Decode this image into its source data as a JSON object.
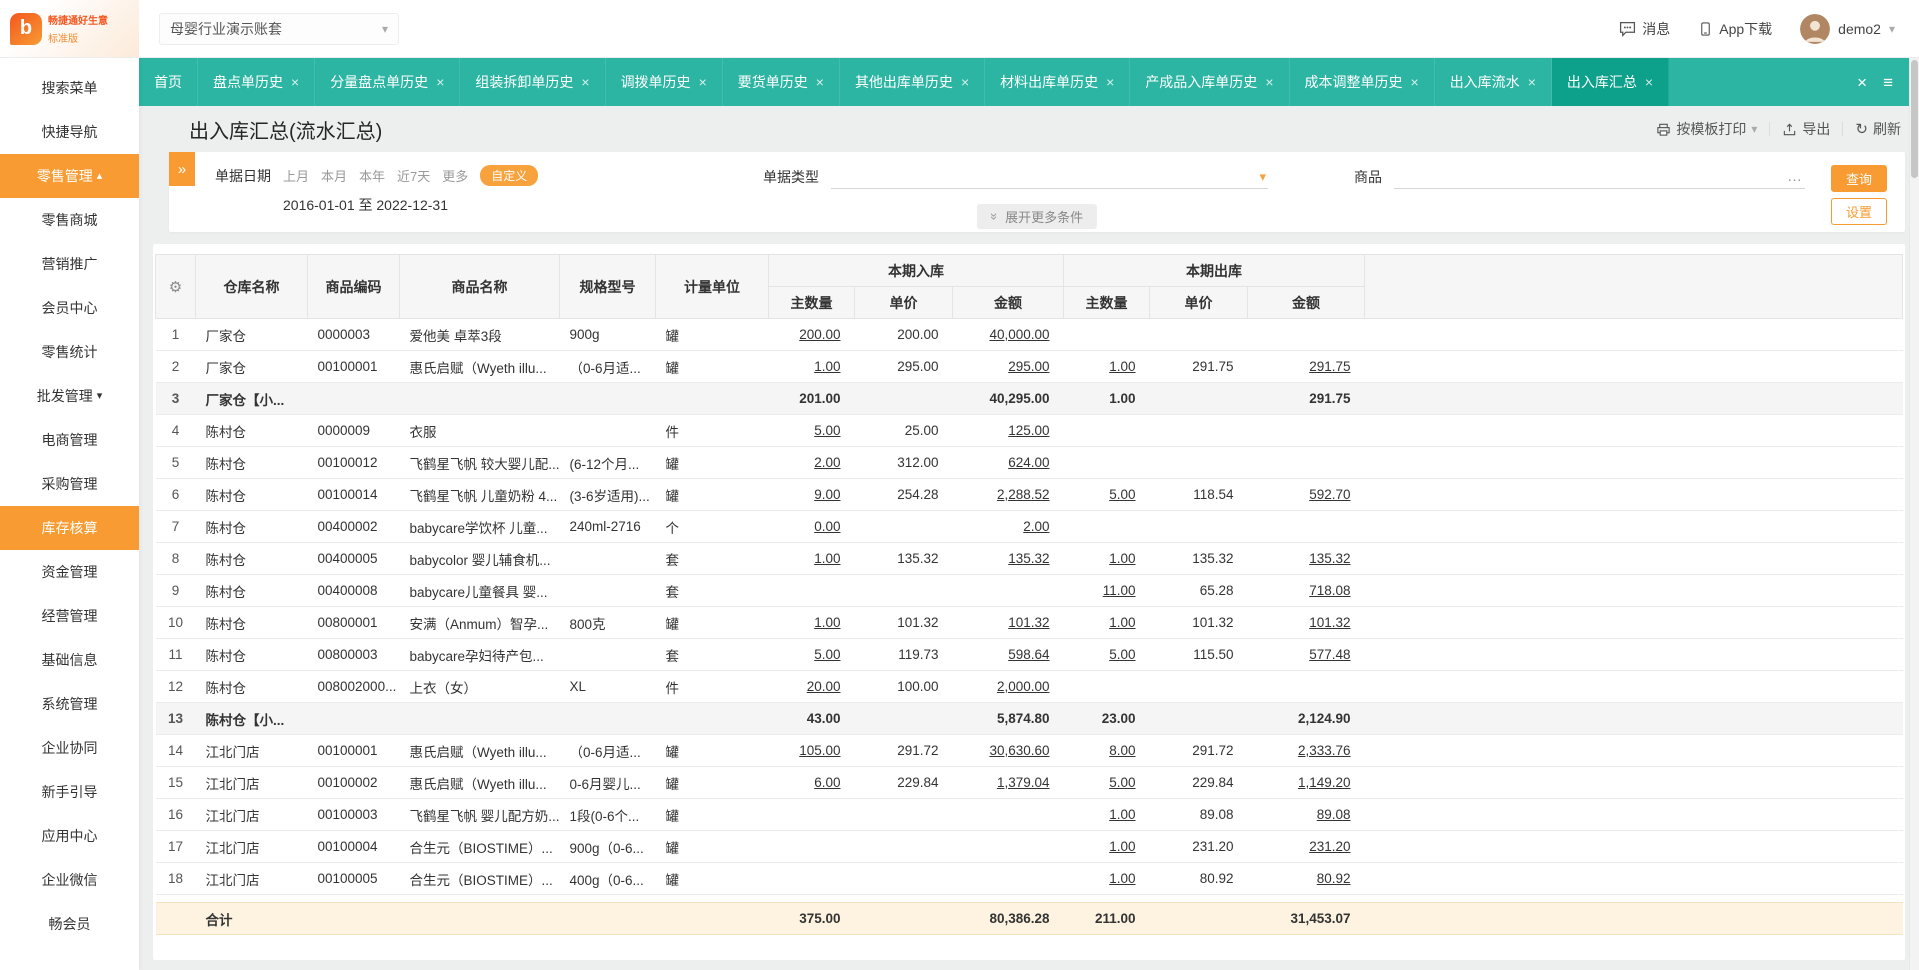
{
  "colors": {
    "teal": "#2db5a3",
    "teal_active_tab": "#0da08b",
    "accent_orange": "#f79b32",
    "logo_orange": "#f4571f",
    "total_row_bg": "#fdf3e0",
    "subtotal_row_bg": "#f5f5f5"
  },
  "icons": {
    "close": "×",
    "gear": "⚙",
    "refresh": "↻",
    "caret_down": "▾",
    "caret_up": "▴",
    "chevron_double": "»",
    "ellipsis": "…",
    "menu": "≡"
  },
  "topbar": {
    "logo_mark": "b",
    "logo_title": "畅捷通好生意",
    "logo_edition": "标准版",
    "account_select": "母婴行业演示账套",
    "messages_label": "消息",
    "app_download_label": "App下载",
    "username": "demo2"
  },
  "sidebar": {
    "items": [
      {
        "key": "search-menu",
        "label": "搜索菜单"
      },
      {
        "key": "quick-nav",
        "label": "快捷导航"
      },
      {
        "key": "retail-mgmt",
        "label": "零售管理",
        "active": true,
        "arrow": "up"
      },
      {
        "key": "retail-mall",
        "label": "零售商城"
      },
      {
        "key": "marketing",
        "label": "营销推广"
      },
      {
        "key": "member-center",
        "label": "会员中心"
      },
      {
        "key": "retail-stats",
        "label": "零售统计"
      },
      {
        "key": "wholesale-mgmt",
        "label": "批发管理",
        "arrow": "down"
      },
      {
        "key": "ecommerce-mgmt",
        "label": "电商管理"
      },
      {
        "key": "purchase-mgmt",
        "label": "采购管理"
      },
      {
        "key": "inventory-accounting",
        "label": "库存核算",
        "active": true
      },
      {
        "key": "fund-mgmt",
        "label": "资金管理"
      },
      {
        "key": "operation-mgmt",
        "label": "经营管理"
      },
      {
        "key": "basic-info",
        "label": "基础信息"
      },
      {
        "key": "system-mgmt",
        "label": "系统管理"
      },
      {
        "key": "enterprise-collab",
        "label": "企业协同"
      },
      {
        "key": "beginner-guide",
        "label": "新手引导"
      },
      {
        "key": "app-center",
        "label": "应用中心"
      },
      {
        "key": "wecom",
        "label": "企业微信"
      },
      {
        "key": "chang-member",
        "label": "畅会员"
      }
    ]
  },
  "tabs": {
    "items": [
      {
        "key": "home",
        "label": "首页",
        "closable": false
      },
      {
        "key": "count-history",
        "label": "盘点单历史",
        "closable": true
      },
      {
        "key": "weighed-count-history",
        "label": "分量盘点单历史",
        "closable": true
      },
      {
        "key": "assembly-history",
        "label": "组装拆卸单历史",
        "closable": true
      },
      {
        "key": "transfer-history",
        "label": "调拨单历史",
        "closable": true
      },
      {
        "key": "requisition-history",
        "label": "要货单历史",
        "closable": true
      },
      {
        "key": "other-outbound-history",
        "label": "其他出库单历史",
        "closable": true
      },
      {
        "key": "material-outbound-history",
        "label": "材料出库单历史",
        "closable": true
      },
      {
        "key": "finished-inbound-history",
        "label": "产成品入库单历史",
        "closable": true
      },
      {
        "key": "cost-adjust-history",
        "label": "成本调整单历史",
        "closable": true
      },
      {
        "key": "inout-flow",
        "label": "出入库流水",
        "closable": true
      },
      {
        "key": "inout-summary",
        "label": "出入库汇总",
        "closable": true,
        "active": true
      }
    ]
  },
  "page": {
    "title": "出入库汇总(流水汇总)",
    "actions": {
      "print": "按模板打印",
      "export": "导出",
      "refresh": "刷新"
    }
  },
  "filters": {
    "date_label": "单据日期",
    "date_quick": [
      "上月",
      "本月",
      "本年",
      "近7天",
      "更多"
    ],
    "date_custom_badge": "自定义",
    "date_range": "2016-01-01 至 2022-12-31",
    "doc_type_label": "单据类型",
    "product_label": "商品",
    "search_button": "查询",
    "settings_button": "设置",
    "expand_more": "展开更多条件"
  },
  "table": {
    "group_in": "本期入库",
    "group_out": "本期出库",
    "columns": [
      "仓库名称",
      "商品编码",
      "商品名称",
      "规格型号",
      "计量单位"
    ],
    "sub_columns": [
      "主数量",
      "单价",
      "金额"
    ],
    "rows": [
      {
        "type": "data",
        "num": "1",
        "warehouse": "厂家仓",
        "code": "0000003",
        "name": "爱他美 卓萃3段",
        "spec": "900g",
        "unit": "罐",
        "in_qty": "200.00",
        "in_price": "200.00",
        "in_amount": "40,000.00",
        "out_qty": "",
        "out_price": "",
        "out_amount": ""
      },
      {
        "type": "data",
        "num": "2",
        "warehouse": "厂家仓",
        "code": "00100001",
        "name": "惠氏启赋（Wyeth illu...",
        "spec": "（0-6月适...",
        "unit": "罐",
        "in_qty": "1.00",
        "in_price": "295.00",
        "in_amount": "295.00",
        "out_qty": "1.00",
        "out_price": "291.75",
        "out_amount": "291.75"
      },
      {
        "type": "subtotal",
        "num": "3",
        "warehouse": "厂家仓【小...",
        "code": "",
        "name": "",
        "spec": "",
        "unit": "",
        "in_qty": "201.00",
        "in_price": "",
        "in_amount": "40,295.00",
        "out_qty": "1.00",
        "out_price": "",
        "out_amount": "291.75"
      },
      {
        "type": "data",
        "num": "4",
        "warehouse": "陈村仓",
        "code": "0000009",
        "name": "衣服",
        "spec": "",
        "unit": "件",
        "in_qty": "5.00",
        "in_price": "25.00",
        "in_amount": "125.00",
        "out_qty": "",
        "out_price": "",
        "out_amount": ""
      },
      {
        "type": "data",
        "num": "5",
        "warehouse": "陈村仓",
        "code": "00100012",
        "name": "飞鹤星飞帆 较大婴儿配...",
        "spec": "(6-12个月...",
        "unit": "罐",
        "in_qty": "2.00",
        "in_price": "312.00",
        "in_amount": "624.00",
        "out_qty": "",
        "out_price": "",
        "out_amount": ""
      },
      {
        "type": "data",
        "num": "6",
        "warehouse": "陈村仓",
        "code": "00100014",
        "name": "飞鹤星飞帆 儿童奶粉 4...",
        "spec": "(3-6岁适用)...",
        "unit": "罐",
        "in_qty": "9.00",
        "in_price": "254.28",
        "in_amount": "2,288.52",
        "out_qty": "5.00",
        "out_price": "118.54",
        "out_amount": "592.70"
      },
      {
        "type": "data",
        "num": "7",
        "warehouse": "陈村仓",
        "code": "00400002",
        "name": "babycare学饮杯 儿童...",
        "spec": "240ml-2716",
        "unit": "个",
        "in_qty": "0.00",
        "in_price": "",
        "in_amount": "2.00",
        "out_qty": "",
        "out_price": "",
        "out_amount": ""
      },
      {
        "type": "data",
        "num": "8",
        "warehouse": "陈村仓",
        "code": "00400005",
        "name": "babycolor 婴儿辅食机...",
        "spec": "",
        "unit": "套",
        "in_qty": "1.00",
        "in_price": "135.32",
        "in_amount": "135.32",
        "out_qty": "1.00",
        "out_price": "135.32",
        "out_amount": "135.32"
      },
      {
        "type": "data",
        "num": "9",
        "warehouse": "陈村仓",
        "code": "00400008",
        "name": "babycare儿童餐具 婴...",
        "spec": "",
        "unit": "套",
        "in_qty": "",
        "in_price": "",
        "in_amount": "",
        "out_qty": "11.00",
        "out_price": "65.28",
        "out_amount": "718.08"
      },
      {
        "type": "data",
        "num": "10",
        "warehouse": "陈村仓",
        "code": "00800001",
        "name": "安满（Anmum）智孕...",
        "spec": "800克",
        "unit": "罐",
        "in_qty": "1.00",
        "in_price": "101.32",
        "in_amount": "101.32",
        "out_qty": "1.00",
        "out_price": "101.32",
        "out_amount": "101.32"
      },
      {
        "type": "data",
        "num": "11",
        "warehouse": "陈村仓",
        "code": "00800003",
        "name": "babycare孕妇待产包...",
        "spec": "",
        "unit": "套",
        "in_qty": "5.00",
        "in_price": "119.73",
        "in_amount": "598.64",
        "out_qty": "5.00",
        "out_price": "115.50",
        "out_amount": "577.48"
      },
      {
        "type": "data",
        "num": "12",
        "warehouse": "陈村仓",
        "code": "008002000...",
        "name": "上衣（女）",
        "spec": "XL",
        "unit": "件",
        "in_qty": "20.00",
        "in_price": "100.00",
        "in_amount": "2,000.00",
        "out_qty": "",
        "out_price": "",
        "out_amount": ""
      },
      {
        "type": "subtotal",
        "num": "13",
        "warehouse": "陈村仓【小...",
        "code": "",
        "name": "",
        "spec": "",
        "unit": "",
        "in_qty": "43.00",
        "in_price": "",
        "in_amount": "5,874.80",
        "out_qty": "23.00",
        "out_price": "",
        "out_amount": "2,124.90"
      },
      {
        "type": "data",
        "num": "14",
        "warehouse": "江北门店",
        "code": "00100001",
        "name": "惠氏启赋（Wyeth illu...",
        "spec": "（0-6月适...",
        "unit": "罐",
        "in_qty": "105.00",
        "in_price": "291.72",
        "in_amount": "30,630.60",
        "out_qty": "8.00",
        "out_price": "291.72",
        "out_amount": "2,333.76"
      },
      {
        "type": "data",
        "num": "15",
        "warehouse": "江北门店",
        "code": "00100002",
        "name": "惠氏启赋（Wyeth illu...",
        "spec": "0-6月婴儿...",
        "unit": "罐",
        "in_qty": "6.00",
        "in_price": "229.84",
        "in_amount": "1,379.04",
        "out_qty": "5.00",
        "out_price": "229.84",
        "out_amount": "1,149.20"
      },
      {
        "type": "data",
        "num": "16",
        "warehouse": "江北门店",
        "code": "00100003",
        "name": "飞鹤星飞帆 婴儿配方奶...",
        "spec": "1段(0-6个...",
        "unit": "罐",
        "in_qty": "",
        "in_price": "",
        "in_amount": "",
        "out_qty": "1.00",
        "out_price": "89.08",
        "out_amount": "89.08"
      },
      {
        "type": "data",
        "num": "17",
        "warehouse": "江北门店",
        "code": "00100004",
        "name": "合生元（BIOSTIME）...",
        "spec": "900g（0-6...",
        "unit": "罐",
        "in_qty": "",
        "in_price": "",
        "in_amount": "",
        "out_qty": "1.00",
        "out_price": "231.20",
        "out_amount": "231.20"
      },
      {
        "type": "data",
        "num": "18",
        "warehouse": "江北门店",
        "code": "00100005",
        "name": "合生元（BIOSTIME）...",
        "spec": "400g（0-6...",
        "unit": "罐",
        "in_qty": "",
        "in_price": "",
        "in_amount": "",
        "out_qty": "1.00",
        "out_price": "80.92",
        "out_amount": "80.92"
      }
    ],
    "total": {
      "label": "合计",
      "in_qty": "375.00",
      "in_amount": "80,386.28",
      "out_qty": "211.00",
      "out_amount": "31,453.07"
    }
  }
}
